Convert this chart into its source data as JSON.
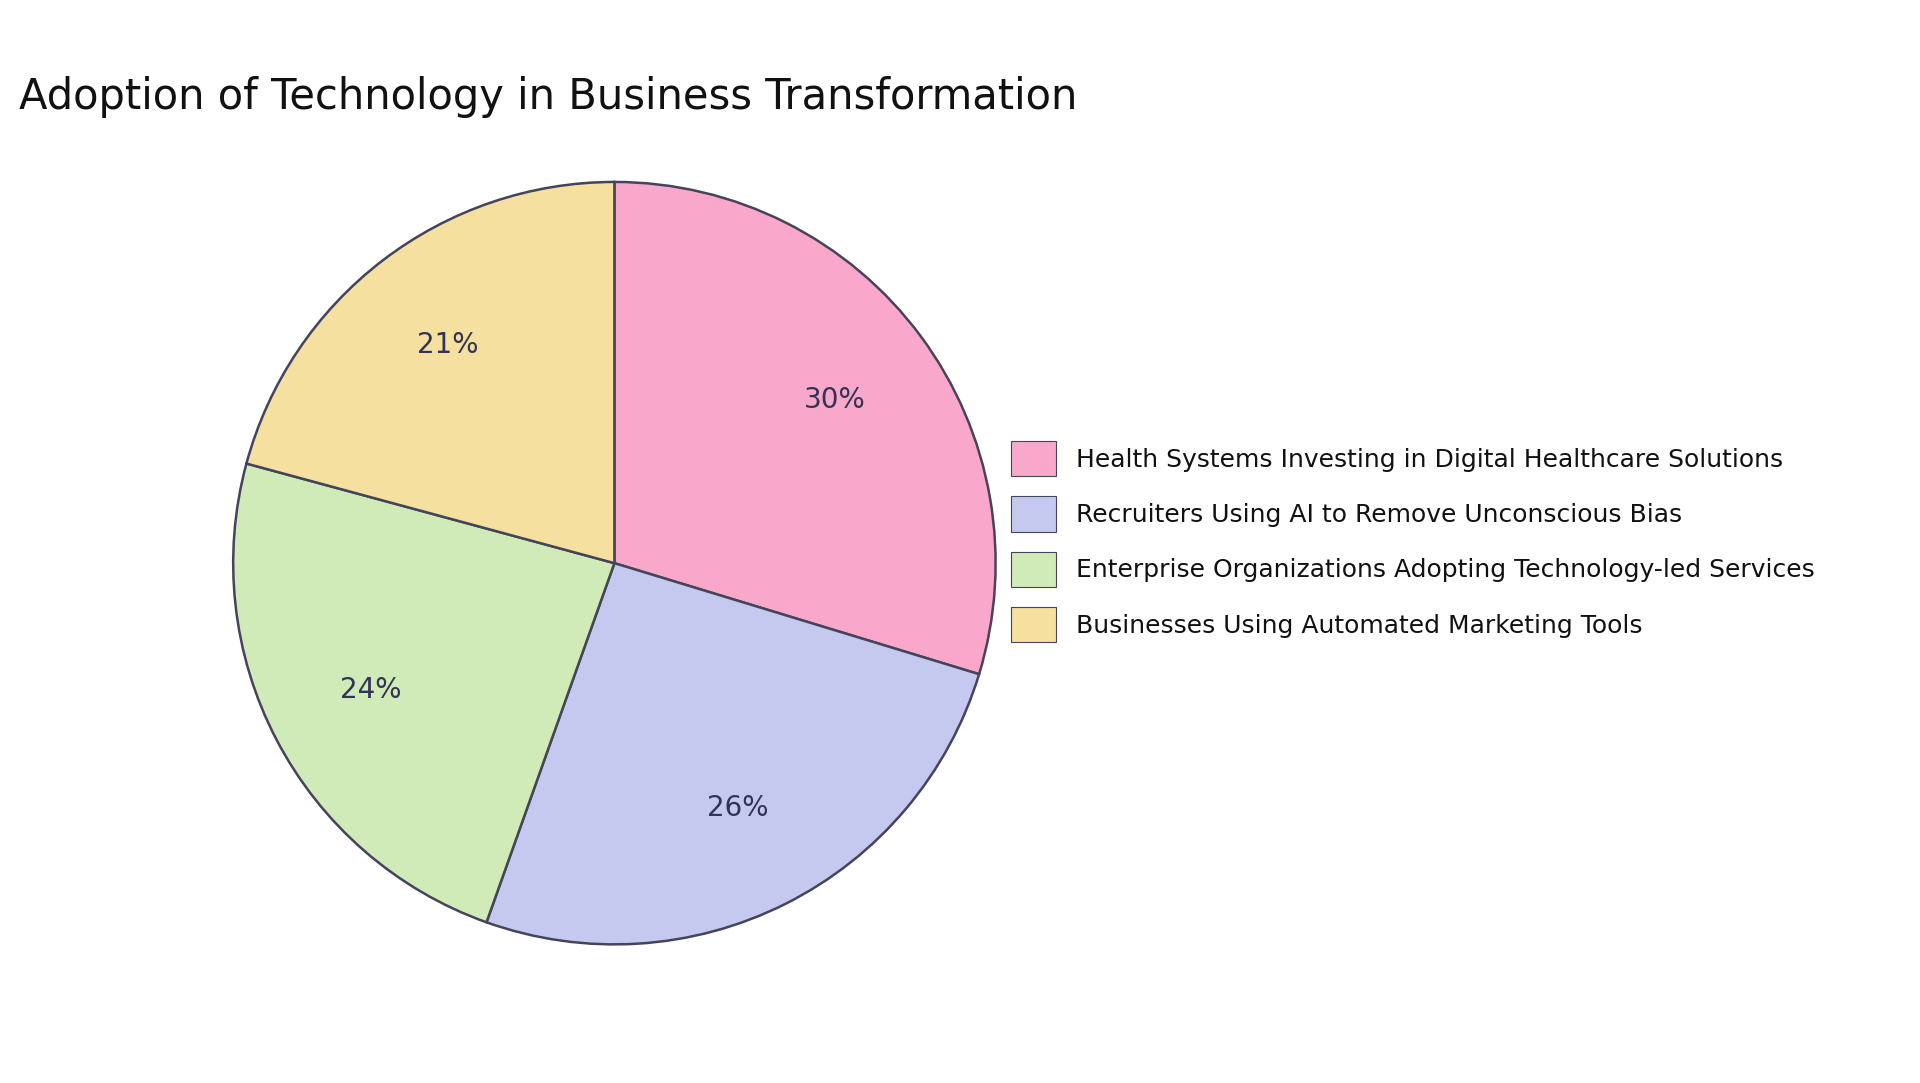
{
  "title": "Adoption of Technology in Business Transformation",
  "slices": [
    {
      "label": "Health Systems Investing in Digital Healthcare Solutions",
      "value": 30,
      "color": "#F9A8CC"
    },
    {
      "label": "Recruiters Using AI to Remove Unconscious Bias",
      "value": 26,
      "color": "#C5C9F0"
    },
    {
      "label": "Enterprise Organizations Adopting Technology-led Services",
      "value": 24,
      "color": "#D0EAB8"
    },
    {
      "label": "Businesses Using Automated Marketing Tools",
      "value": 21,
      "color": "#F5E0A0"
    }
  ],
  "edge_color": "#44445A",
  "edge_linewidth": 1.8,
  "autopct_color": "#333355",
  "autopct_fontsize": 20,
  "legend_fontsize": 18,
  "title_fontsize": 30,
  "background_color": "#ffffff",
  "start_angle": 90,
  "pct_distance": 0.72
}
